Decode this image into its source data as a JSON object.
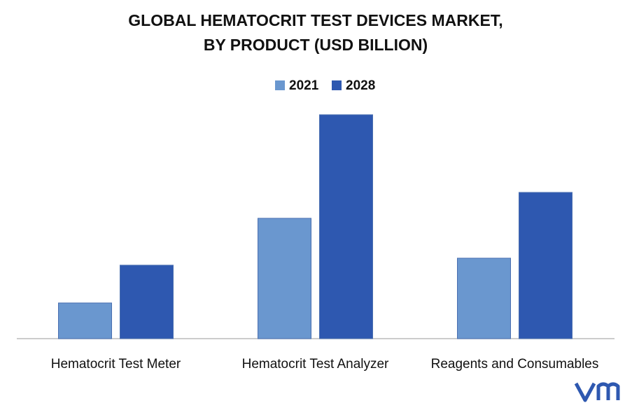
{
  "chart_data": {
    "type": "bar",
    "title": [
      "GLOBAL HEMATOCRIT TEST DEVICES MARKET,",
      "BY PRODUCT (USD BILLION)"
    ],
    "categories": [
      "Hematocrit Test Meter",
      "Hematocrit Test Analyzer",
      "Reagents and Consumables"
    ],
    "series": [
      {
        "name": "2021",
        "color": "#6a97cf",
        "values": [
          51,
          172,
          115
        ]
      },
      {
        "name": "2028",
        "color": "#2e58b0",
        "values": [
          105,
          320,
          209
        ]
      }
    ],
    "ylim": [
      0,
      340
    ],
    "legend": "top"
  }
}
